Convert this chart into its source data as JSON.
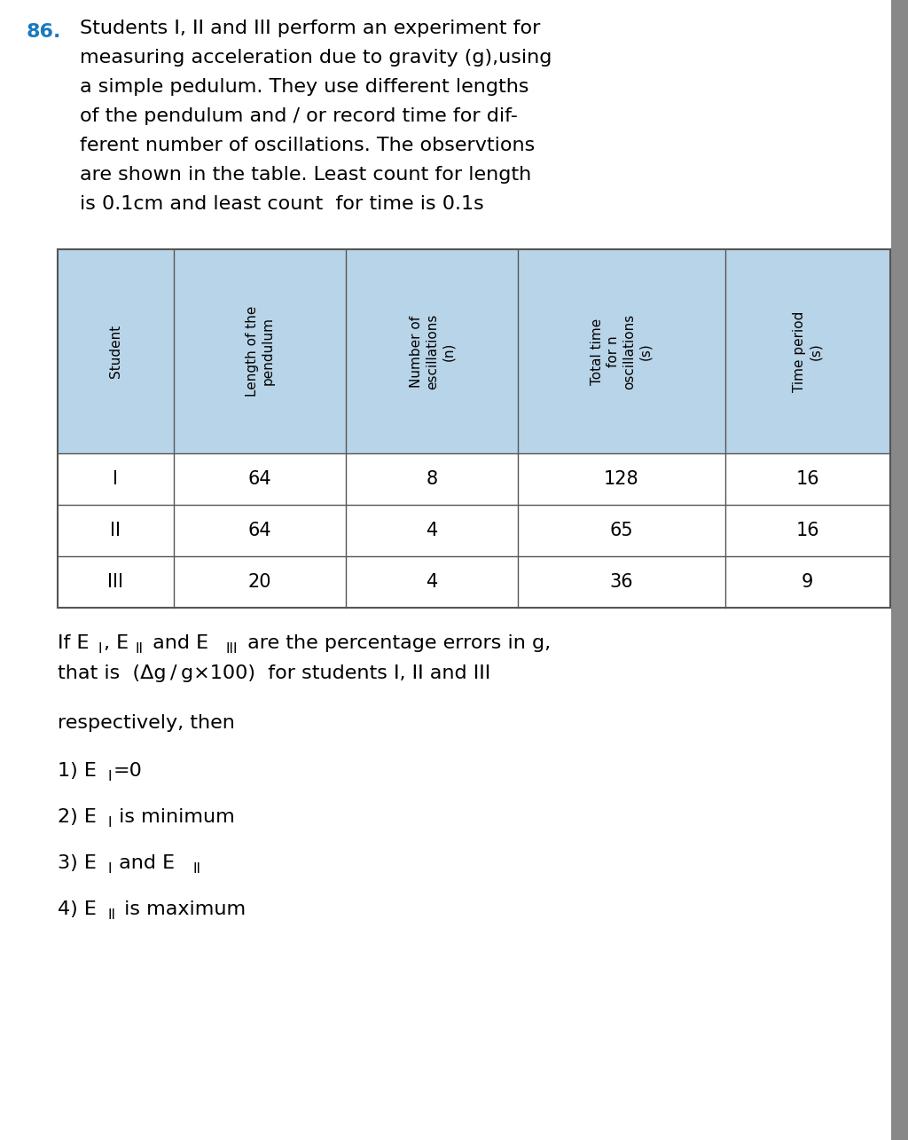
{
  "question_number": "86.",
  "question_lines": [
    "Students I, II and III perform an experiment for",
    "measuring acceleration due to gravity (g),using",
    "a simple pedulum. They use different lengths",
    "of the pendulum and / or record time for dif-",
    "ferent number of oscillations. The observtions",
    "are shown in the table. Least count for length",
    "is 0.1cm and least count  for time is 0.1s"
  ],
  "col_headers": [
    "Student",
    "Length of the\npendulum",
    "Number of\nescillations\n(n)",
    "Total time\nfor n\noscillations\n(s)",
    "Time period\n(s)"
  ],
  "rows": [
    [
      "I",
      "64",
      "8",
      "128",
      "16"
    ],
    [
      "II",
      "64",
      "4",
      "65",
      "16"
    ],
    [
      "III",
      "20",
      "4",
      "36",
      "9"
    ]
  ],
  "header_bg": "#b8d4e8",
  "border_color": "#555555",
  "text_color": "#000000",
  "number_color": "#1a7abf",
  "bg_color": "#ffffff",
  "right_shadow_color": "#888888",
  "font_size_q": 16,
  "font_size_header": 11,
  "font_size_cell": 15,
  "font_size_body": 16
}
